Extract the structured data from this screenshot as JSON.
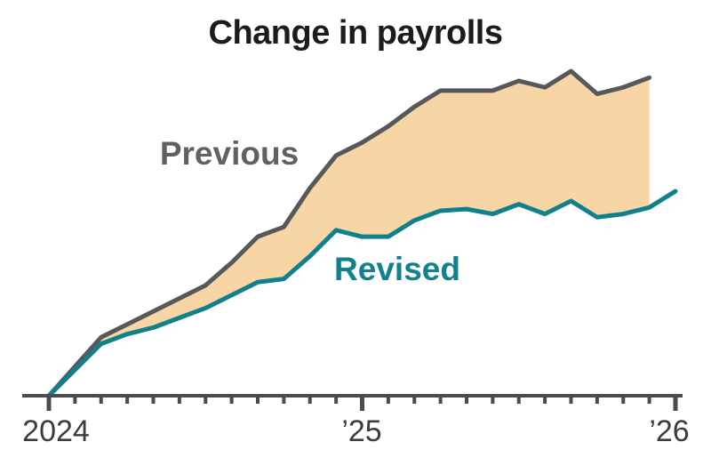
{
  "title": "Change in payrolls",
  "labels": {
    "previous": "Previous",
    "revised": "Revised"
  },
  "x_axis": {
    "tick_labels": [
      "2024",
      "’25",
      "’26"
    ],
    "months_total": 25,
    "major_tick_months": [
      0,
      12,
      24
    ]
  },
  "colors": {
    "background": "#ffffff",
    "title_text": "#1c1c1c",
    "previous_line": "#57585a",
    "previous_label": "#616161",
    "revised_line": "#10808c",
    "revised_label": "#13818d",
    "fill_between": "#f8d5a4",
    "axis": "#4c4c4c",
    "tick_label": "#3c3c3c"
  },
  "chart_data": {
    "type": "area",
    "title": "Change in payrolls",
    "x": [
      "Jan 2024",
      "Feb 2024",
      "Mar 2024",
      "Apr 2024",
      "May 2024",
      "Jun 2024",
      "Jul 2024",
      "Aug 2024",
      "Sep 2024",
      "Oct 2024",
      "Nov 2024",
      "Dec 2024",
      "Jan 2025",
      "Feb 2025",
      "Mar 2025",
      "Apr 2025",
      "May 2025",
      "Jun 2025",
      "Jul 2025",
      "Aug 2025",
      "Sep 2025",
      "Oct 2025",
      "Nov 2025",
      "Dec 2025",
      "Jan 2026"
    ],
    "x_tick_labels_shown": [
      "2024",
      "’25",
      "’26"
    ],
    "series": [
      {
        "name": "Previous",
        "color": "#57585a",
        "values": [
          0,
          9,
          18,
          22,
          26,
          30,
          34,
          41,
          49,
          52,
          64,
          74,
          78,
          83,
          89,
          94,
          94,
          94,
          97,
          95,
          100,
          93,
          95,
          98,
          null
        ]
      },
      {
        "name": "Revised",
        "color": "#10808c",
        "values": [
          0,
          8,
          16,
          19,
          21,
          24,
          27,
          31,
          35,
          36,
          43,
          51,
          49,
          49,
          54,
          57,
          57.5,
          56,
          59,
          56,
          60,
          55,
          56,
          58,
          63
        ]
      }
    ],
    "fill_between_series": true,
    "fill_color": "#f8d5a4",
    "ylim": [
      0,
      100
    ],
    "y_axis_visible": false,
    "units": "index estimated from pixels; chart displays no y-axis labels (100 = peak of Previous series)",
    "grid": false,
    "legend_position": "inline labels on chart"
  }
}
